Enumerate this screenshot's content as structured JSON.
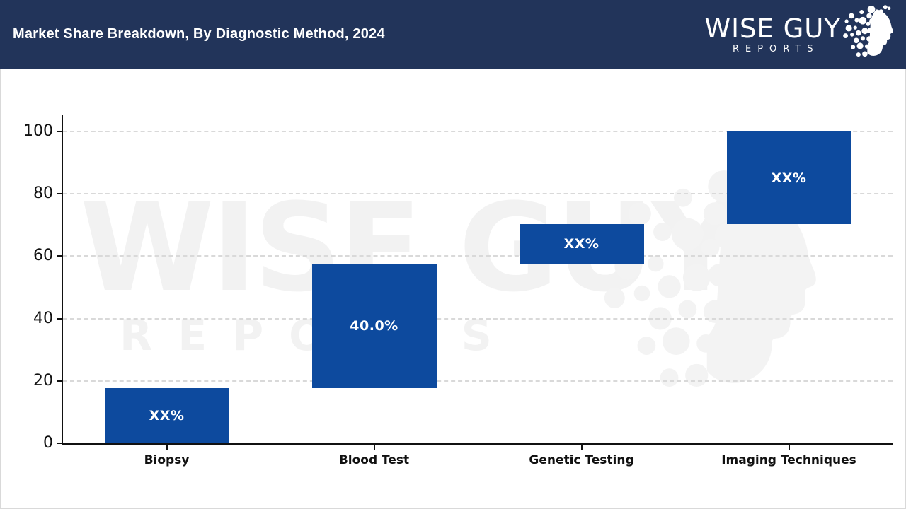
{
  "header": {
    "title": "Market Share Breakdown, By Diagnostic Method, 2024",
    "logo": {
      "primary": "WISE GUY",
      "secondary": "REPORTS"
    }
  },
  "watermark": {
    "primary": "WISE GUY",
    "secondary": "REPORTS"
  },
  "colors": {
    "header_bg": "#22345a",
    "bar_blue": "#0d4a9e",
    "gridline": "#d9d9d9",
    "watermark": "#f2f2f2",
    "bar_label": "#ffffff"
  },
  "chart_data": {
    "type": "bar",
    "subtype": "waterfall-floating-segments",
    "title": "Market Share Breakdown, By Diagnostic Method, 2024",
    "categories": [
      "Biopsy",
      "Blood Test",
      "Genetic Testing",
      "Imaging Techniques"
    ],
    "segments": [
      {
        "category": "Biopsy",
        "start": 0,
        "end": 17.7,
        "value_label": "XX%"
      },
      {
        "category": "Blood Test",
        "start": 17.7,
        "end": 57.7,
        "value_label": "40.0%"
      },
      {
        "category": "Genetic Testing",
        "start": 57.7,
        "end": 70.2,
        "value_label": "XX%"
      },
      {
        "category": "Imaging Techniques",
        "start": 70.2,
        "end": 100,
        "value_label": "XX%"
      }
    ],
    "xlabel": "",
    "ylabel": "",
    "yticks": [
      0,
      20,
      40,
      60,
      80,
      100
    ],
    "ylim": [
      0,
      105
    ],
    "grid": "horizontal-dashed",
    "legend": "none",
    "bar_color": "#0d4a9e",
    "bar_label_color": "#ffffff"
  }
}
